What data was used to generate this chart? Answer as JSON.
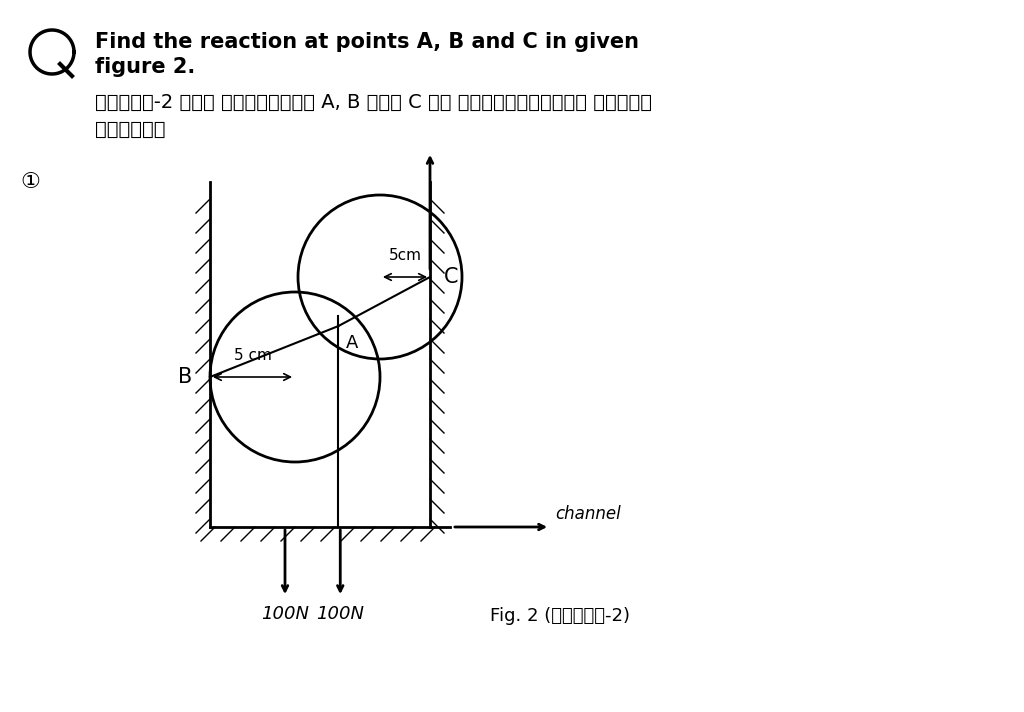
{
  "background_color": "#ffffff",
  "title_line1": "Find the reaction at points A, B and C in given",
  "title_line2": "figure 2.",
  "hindi_line1": "चित्र-2 में बिन्दुओं A, B तथा C पर प्रतिक्रिया ज्ञात",
  "hindi_line2": "कीजिए।",
  "fig_label": "Fig. 2 (चित्र-2)",
  "channel_label": "channel",
  "label_A": "A",
  "label_B": "B",
  "label_C": "C",
  "dim_5cm_1": "5 cm",
  "dim_5cm_2": "5cm",
  "force1": "100N",
  "force2": "100N",
  "number_label": "①",
  "lw_wall": 2.0,
  "lw_circle": 2.0,
  "lw_line": 1.5,
  "lw_hatch": 1.0
}
